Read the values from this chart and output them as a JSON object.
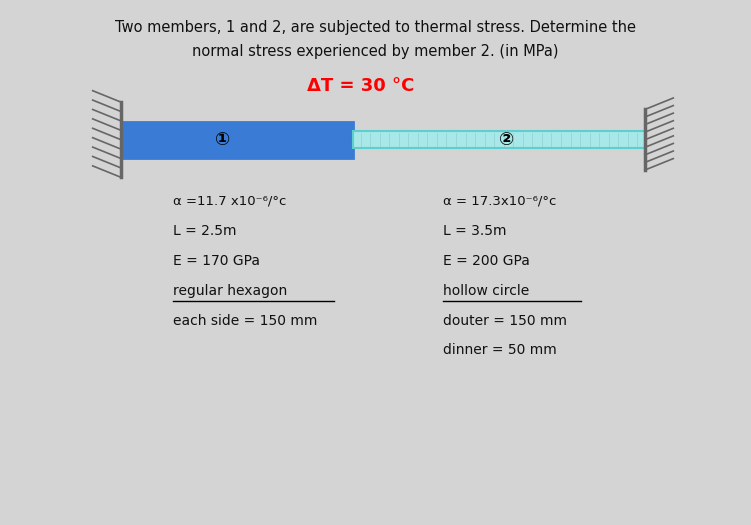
{
  "title_line1": "Two members, 1 and 2, are subjected to thermal stress. Determine the",
  "title_line2": "normal stress experienced by member 2. (in MPa)",
  "delta_T_label": "ΔT = 30 °C",
  "member1_label": "①",
  "member2_label": "②",
  "bg_color": "#d4d4d4",
  "member1_fill": "#3a7bd5",
  "member2_fill": "#5ecfcf",
  "wall_color": "#666666",
  "text_color": "#111111",
  "alpha1_line": "α =11.7 x10⁻⁶/°c",
  "alpha2_line": "α = 17.3x10⁻⁶/°c",
  "L1_line": "L = 2.5m",
  "L2_line": "L = 3.5m",
  "E1_line": "E = 170 GPa",
  "E2_line": "E = 200 GPa",
  "section1_line": "regular hexagon",
  "section2_line": "hollow circle",
  "dim1_line": "each side = 150 mm",
  "dim2a_line": "douter = 150 mm",
  "dim2b_line": "dinner = 50 mm"
}
